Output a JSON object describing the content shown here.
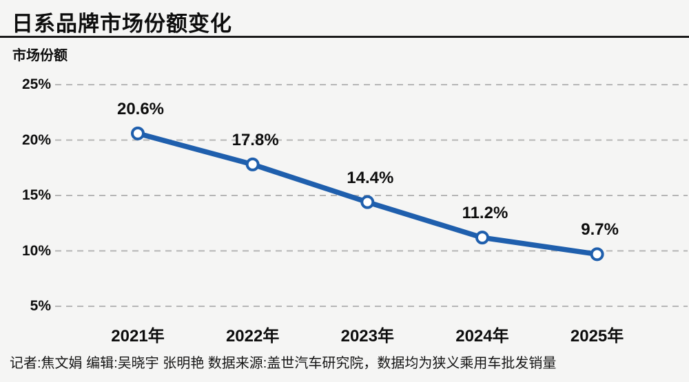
{
  "page": {
    "title": "日系品牌市场份额变化",
    "y_axis_title": "市场份额",
    "footer": "记者:焦文娟  编辑:吴晓宇 张明艳  数据来源:盖世汽车研究院，数据均为狭义乘用车批发销量"
  },
  "chart_data": {
    "type": "line",
    "title": "日系品牌市场份额变化",
    "xlabel": "",
    "ylabel": "市场份额",
    "categories": [
      "2021年",
      "2022年",
      "2023年",
      "2024年",
      "2025年"
    ],
    "values": [
      20.6,
      17.8,
      14.4,
      11.2,
      9.7
    ],
    "point_labels": [
      "20.6%",
      "17.8%",
      "14.4%",
      "11.2%",
      "9.7%"
    ],
    "yticks": [
      25,
      20,
      15,
      10,
      5
    ],
    "ytick_labels": [
      "25%",
      "20%",
      "15%",
      "10%",
      "5%"
    ],
    "ylim": [
      5,
      25
    ],
    "grid": "horizontal-dashed",
    "legend_position": "none",
    "colors": {
      "line": "#1f5fad",
      "marker_fill": "#ffffff",
      "marker_stroke": "#1f5fad",
      "grid": "#b5b5b5",
      "text": "#0d0d0d",
      "background": "#f5f5f4"
    }
  }
}
